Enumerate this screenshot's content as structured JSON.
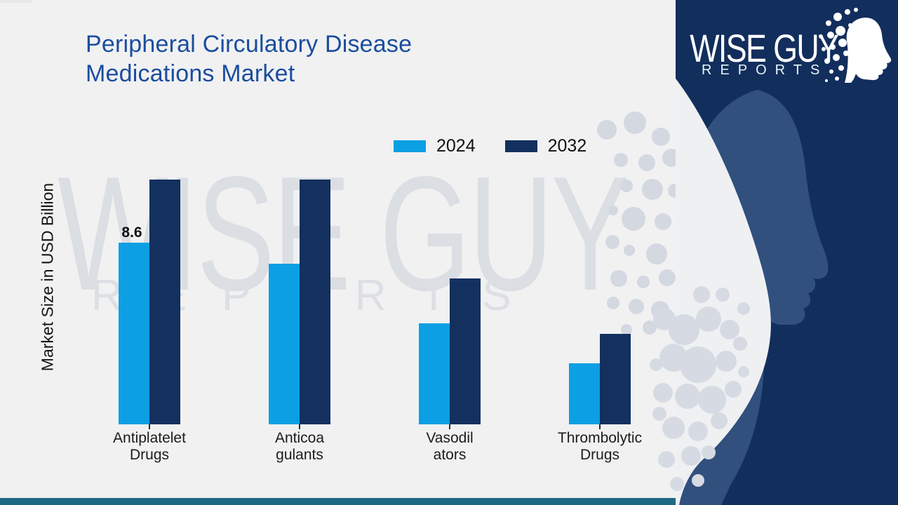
{
  "title": {
    "line1": "Peripheral Circulatory Disease",
    "line2": "Medications Market",
    "color": "#1b4d9e"
  },
  "ylabel": "Market Size in USD Billion",
  "watermark": {
    "line1": "WISE GUY",
    "line2": "REPORTS"
  },
  "brand": {
    "wordmark": "WISE GUY",
    "sub": "REPORTS"
  },
  "chart_data": {
    "type": "bar",
    "title": "Peripheral Circulatory Disease Medications Market",
    "xlabel": "",
    "ylabel": "Market Size in USD Billion",
    "units": "USD Billion",
    "categories": [
      "Antiplatelet Drugs",
      "Anticoagulants",
      "Vasodilators",
      "Thrombolytic Drugs"
    ],
    "category_lines": [
      [
        "Antiplatelet",
        "Drugs"
      ],
      [
        "Anticoa",
        "gulants"
      ],
      [
        "Vasodil",
        "ators"
      ],
      [
        "Thrombolytic",
        "Drugs"
      ]
    ],
    "series": [
      {
        "name": "2024",
        "color": "#0c9fe4",
        "values": [
          8.6,
          7.6,
          4.8,
          2.9
        ]
      },
      {
        "name": "2032",
        "color": "#13305f",
        "values": [
          11.6,
          11.6,
          6.9,
          4.3
        ]
      }
    ],
    "bar_label": {
      "series_index": 0,
      "category_index": 0,
      "text": "8.6"
    },
    "legend_position": "top",
    "grid": false,
    "ylim": [
      0,
      12
    ]
  },
  "colors": {
    "background": "#f1f1f2",
    "accent_blue": "#0c9fe4",
    "navy": "#13305f",
    "panel_navy": "#122e5c",
    "panel_face": "#31507d",
    "panel_circle": "#eef0f2",
    "panel_blob": "#d6dbe3",
    "watermark_gray": "#dbdee3",
    "teal_strip": "#1e6a82"
  }
}
